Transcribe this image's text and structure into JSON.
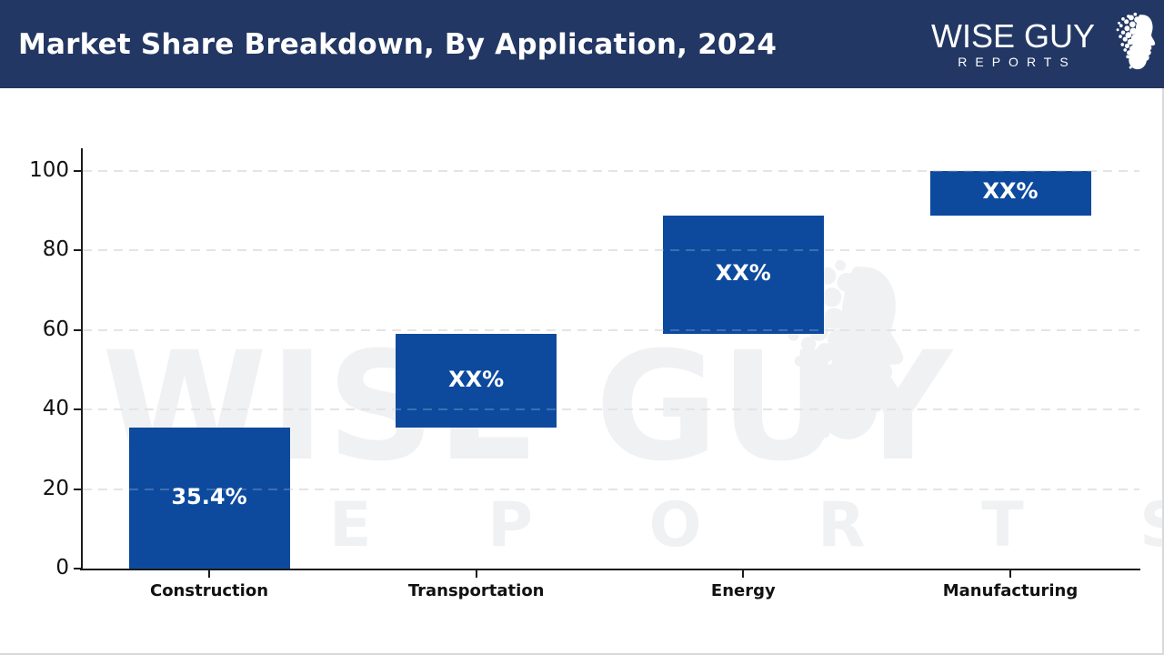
{
  "header": {
    "title": "Market Share Breakdown, By Application, 2024",
    "logo": {
      "line1": "WISE GUY",
      "line2": "REPORTS"
    }
  },
  "watermark": {
    "line1": "WISE GUY",
    "line2": "REPORTS"
  },
  "chart_data": {
    "type": "bar",
    "subtype": "waterfall",
    "title": "Market Share Breakdown, By Application, 2024",
    "categories": [
      "Construction",
      "Transportation",
      "Energy",
      "Manufacturing"
    ],
    "segments": [
      {
        "category": "Construction",
        "start": 0,
        "end": 35.4,
        "label": "35.4%"
      },
      {
        "category": "Transportation",
        "start": 35.4,
        "end": 59.0,
        "label": "XX%"
      },
      {
        "category": "Energy",
        "start": 59.0,
        "end": 88.7,
        "label": "XX%"
      },
      {
        "category": "Manufacturing",
        "start": 88.7,
        "end": 100,
        "label": "XX%"
      }
    ],
    "xlabel": "",
    "ylabel": "",
    "yticks": [
      0,
      20,
      40,
      60,
      80,
      100
    ],
    "ylim": [
      0,
      105
    ],
    "grid": true,
    "grid_style": "dashed",
    "legend": false,
    "bar_color": "#0d4a9e"
  },
  "colors": {
    "header_bg": "#223763",
    "bar": "#0d4a9e",
    "gridline": "#dedede",
    "watermark": "#f0f1f3",
    "axis": "#1a1a1a",
    "text": "#111111",
    "title_text": "#ffffff"
  }
}
